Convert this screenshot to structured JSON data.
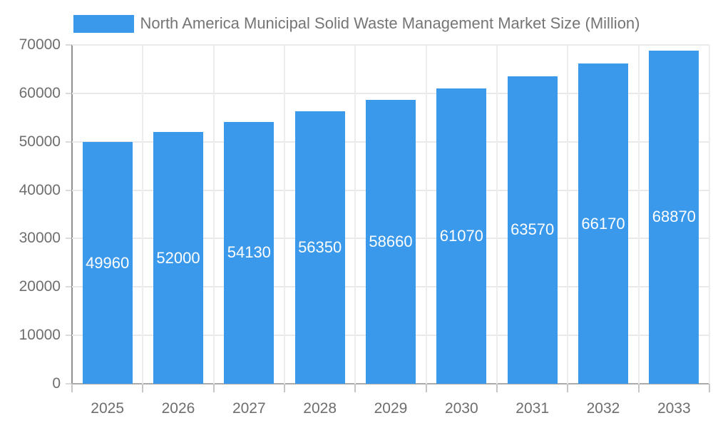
{
  "legend": {
    "label": "North America Municipal Solid Waste Management Market Size (Million)"
  },
  "chart_data": {
    "type": "bar",
    "title": "North America Municipal Solid Waste Management Market Size (Million)",
    "categories": [
      "2025",
      "2026",
      "2027",
      "2028",
      "2029",
      "2030",
      "2031",
      "2032",
      "2033"
    ],
    "values": [
      49960,
      52000,
      54130,
      56350,
      58660,
      61070,
      63570,
      66170,
      68870
    ],
    "series_name": "North America Municipal Solid Waste Management Market Size (Million)",
    "xlabel": "",
    "ylabel": "",
    "ylim": [
      0,
      70000
    ],
    "yticks": [
      0,
      10000,
      20000,
      30000,
      40000,
      50000,
      60000,
      70000
    ],
    "grid": true,
    "legend_position": "top",
    "bar_color": "#3B99EC",
    "value_label_color": "#FFFFFF"
  },
  "colors": {
    "bar": "#3B99EC",
    "background": "#FFFFFF",
    "legend_text": "#757575",
    "axis_text": "#6E6E6E",
    "y_axis_line": "#8F8F8F",
    "x_axis_line": "#ABABAB",
    "grid_line": "#E9E9E9",
    "tick_mark": "#C6C6C6"
  }
}
